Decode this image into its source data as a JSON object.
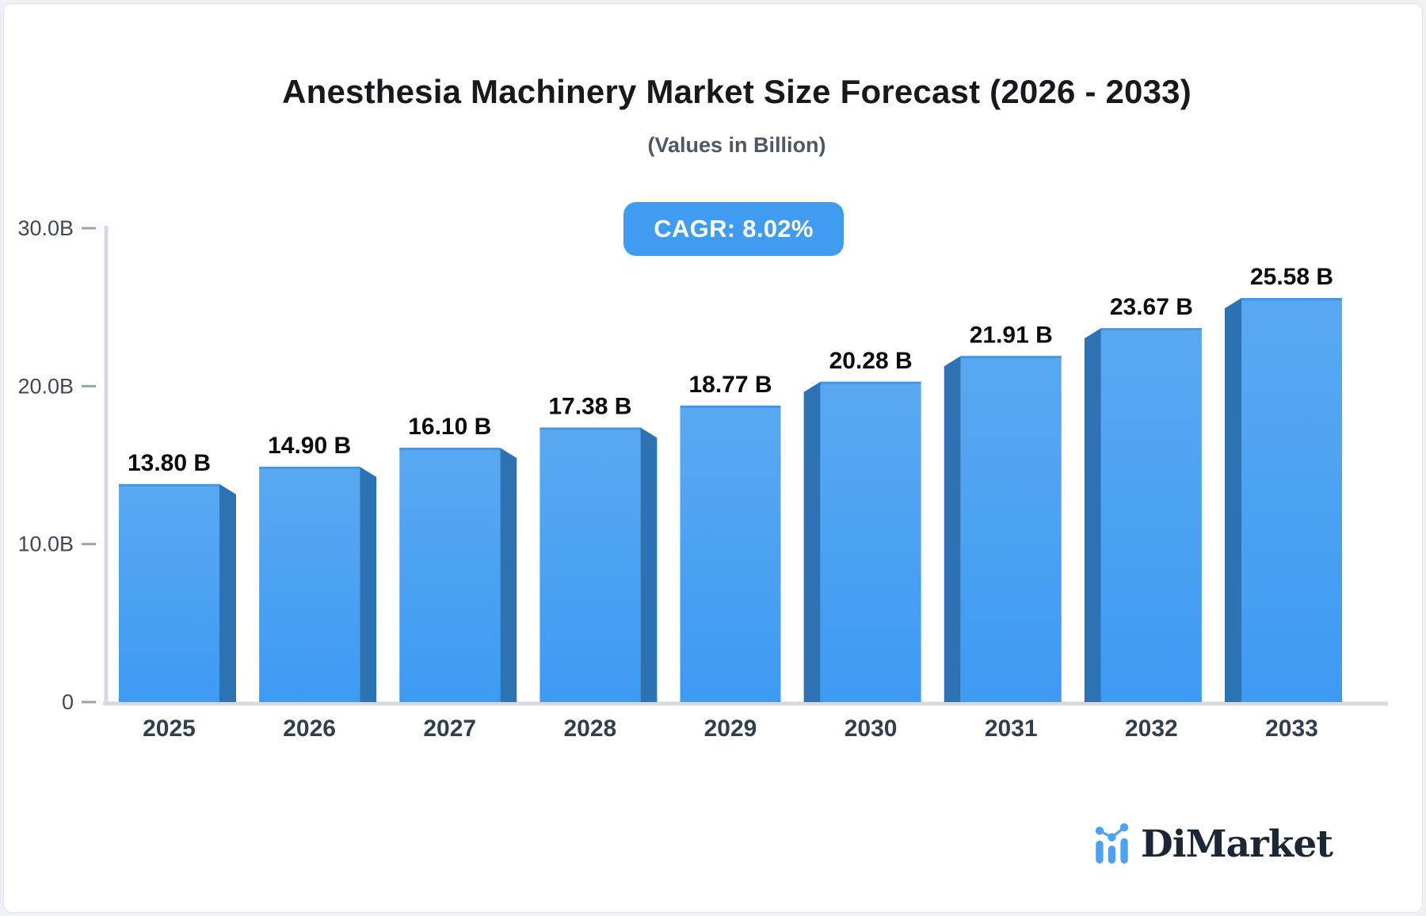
{
  "header": {
    "title": "Anesthesia Machinery Market Size Forecast (2026 - 2033)",
    "subtitle": "(Values in Billion)"
  },
  "badge": {
    "text": "CAGR: 8.02%"
  },
  "logo": {
    "text": "DiMarket",
    "icon": "mini-bar-line-chart"
  },
  "chart_data": {
    "type": "bar",
    "title": "Anesthesia Machinery Market Size Forecast (2026 - 2033)",
    "subtitle": "(Values in Billion)",
    "cagr_label": "CAGR: 8.02%",
    "categories": [
      "2025",
      "2026",
      "2027",
      "2028",
      "2029",
      "2030",
      "2031",
      "2032",
      "2033"
    ],
    "values": [
      13.8,
      14.9,
      16.1,
      17.38,
      18.77,
      20.28,
      21.91,
      23.67,
      25.58
    ],
    "value_labels": [
      "13.80 B",
      "14.90 B",
      "16.10 B",
      "17.38 B",
      "18.77 B",
      "20.28 B",
      "21.91 B",
      "23.67 B",
      "25.58 B"
    ],
    "xlabel": "",
    "ylabel": "",
    "ylim": [
      0,
      30
    ],
    "yticks": [
      {
        "value": 30,
        "label": "30.0B"
      },
      {
        "value": 20,
        "label": "20.0B"
      },
      {
        "value": 10,
        "label": "10.0B"
      },
      {
        "value": 0,
        "label": "0"
      }
    ],
    "grid": false,
    "legend": false,
    "bar_style": "3d-perspective-center-vanishing",
    "colors": {
      "bar_top": "#59a9f1",
      "bar_bottom": "#3e9af3",
      "bar_side": "#2d73b3",
      "bar_top_edge": "#4595e8",
      "axis": "#d5d8dd",
      "tick_dash": "#9aa2ac",
      "tick_label": "#3e4956",
      "category_label": "#333e4c",
      "value_label": "#0b0c0e",
      "badge_bg": "#3f9cf1",
      "badge_text": "#ffffff",
      "logo_blue": "#4aa2f6",
      "logo_text": "#1c2736"
    }
  }
}
